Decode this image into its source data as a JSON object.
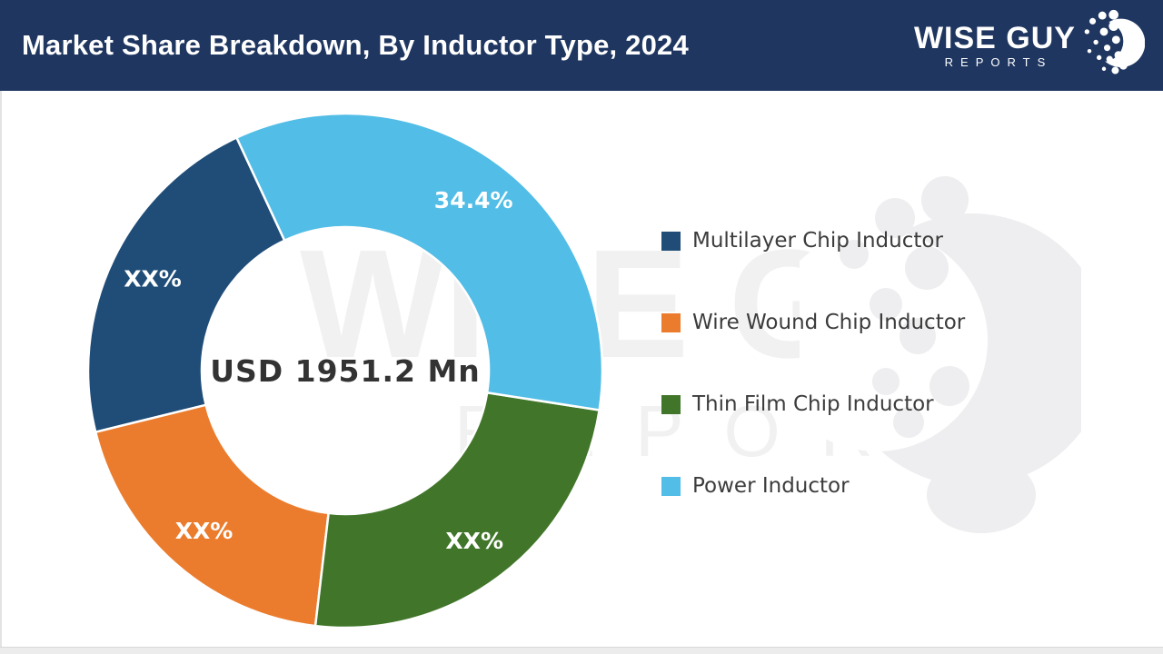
{
  "header": {
    "title": "Market Share Breakdown, By Inductor Type, 2024",
    "background": "#1f3660",
    "logo": {
      "line1": "WISE GUY",
      "line2": "REPORTS"
    }
  },
  "watermark": {
    "line1": "WISE GUY",
    "line2": "REPORTS"
  },
  "chart_data": {
    "type": "pie",
    "title": "Market Share Breakdown, By Inductor Type, 2024",
    "donut": true,
    "total_label": "USD 1951.2 Mn",
    "start_angle_deg_clockwise_from_12": -25,
    "legend_position": "right",
    "slices": [
      {
        "label": "Power Inductor",
        "value": 34.4,
        "display": "34.4%",
        "color": "#52bde6"
      },
      {
        "label": "Thin Film Chip Inductor",
        "value": 24.4,
        "display": "XX%",
        "color": "#41762a"
      },
      {
        "label": "Wire Wound Chip Inductor",
        "value": 19.3,
        "display": "XX%",
        "color": "#eb7c2d"
      },
      {
        "label": "Multilayer Chip Inductor",
        "value": 21.9,
        "display": "XX%",
        "color": "#1f4d78"
      }
    ],
    "legend": [
      {
        "label": "Multilayer Chip Inductor",
        "color": "#1f4d78"
      },
      {
        "label": "Wire Wound Chip Inductor",
        "color": "#eb7c2d"
      },
      {
        "label": "Thin Film Chip Inductor",
        "color": "#41762a"
      },
      {
        "label": "Power Inductor",
        "color": "#52bde6"
      }
    ]
  }
}
